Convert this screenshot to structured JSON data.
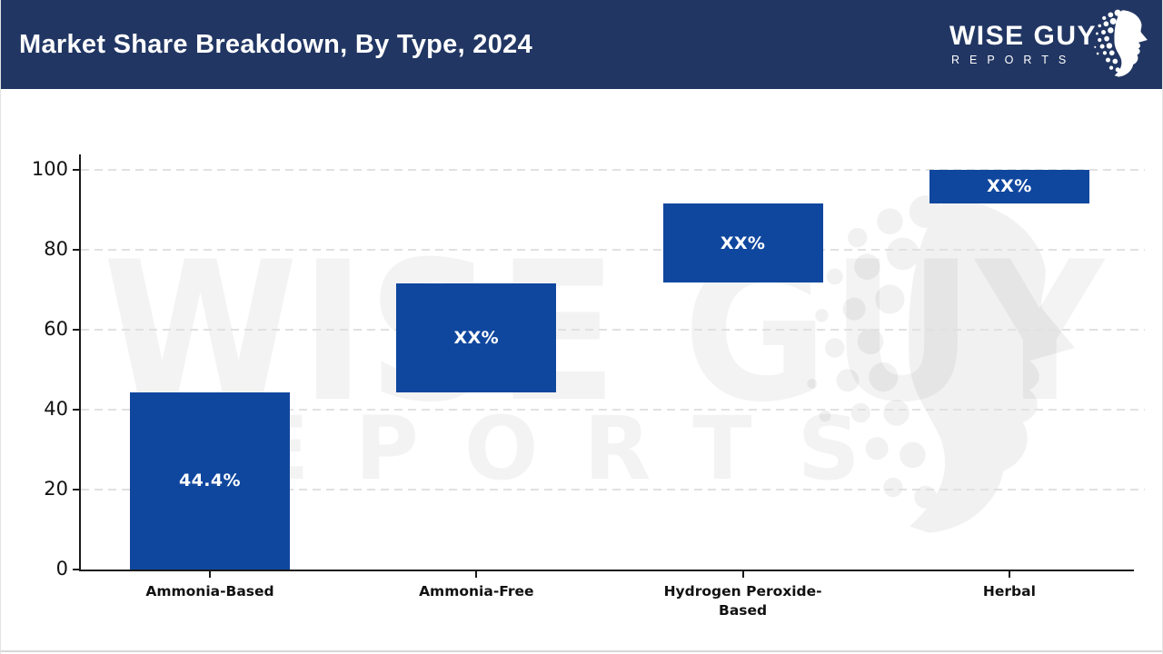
{
  "header": {
    "title": "Market Share Breakdown, By Type, 2024",
    "bg_color": "#213663",
    "logo": {
      "line1": "WISE GUY",
      "line2": "REPORTS"
    }
  },
  "watermark": {
    "line1": "WISE GUY",
    "line2": "REPORTS"
  },
  "chart_data": {
    "type": "bar",
    "subtype": "waterfall-floating-bars",
    "title": "Market Share Breakdown, By Type, 2024",
    "categories": [
      "Ammonia-Based",
      "Ammonia-Free",
      "Hydrogen Peroxide-Based",
      "Herbal"
    ],
    "bars": [
      {
        "category": "Ammonia-Based",
        "start": 0,
        "end": 44.4,
        "label": "44.4%"
      },
      {
        "category": "Ammonia-Free",
        "start": 44.4,
        "end": 71.7,
        "label": "XX%"
      },
      {
        "category": "Hydrogen Peroxide-Based",
        "start": 71.9,
        "end": 91.5,
        "label": "XX%"
      },
      {
        "category": "Herbal",
        "start": 91.7,
        "end": 100,
        "label": "XX%"
      }
    ],
    "xlabel": "",
    "ylabel": "",
    "ylim": [
      0,
      100
    ],
    "yticks": [
      0,
      20,
      40,
      60,
      80,
      100
    ],
    "grid": "horizontal-dashed",
    "legend": "none",
    "bar_color": "#10479e",
    "bar_label_color": "#ffffff",
    "axis_color": "#1a1a1a",
    "grid_color": "#e1e1e1"
  }
}
